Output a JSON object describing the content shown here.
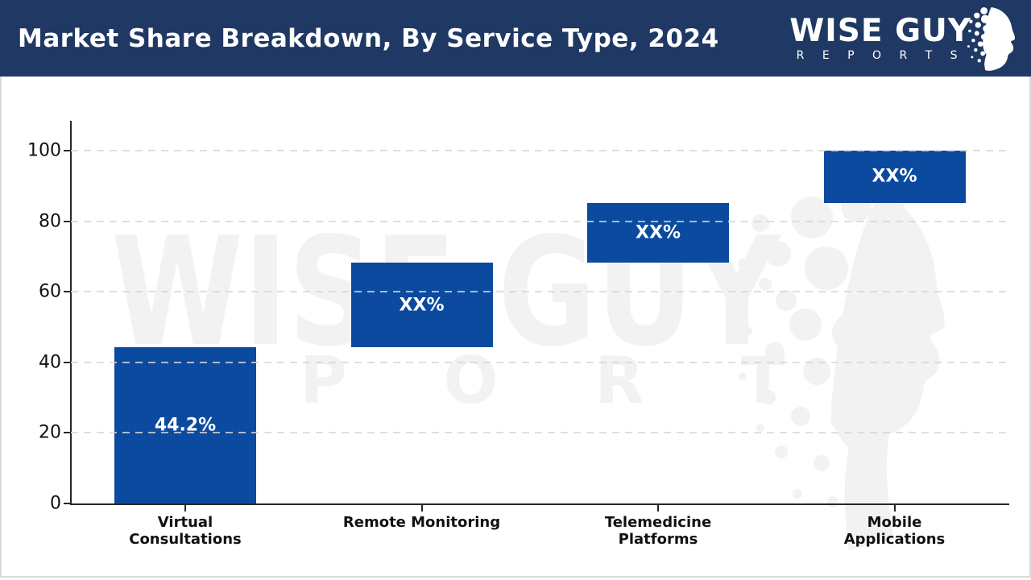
{
  "header": {
    "title": "Market Share Breakdown, By Service Type, 2024",
    "logo": {
      "name": "WISE GUY",
      "subname": "R E P O R T S"
    }
  },
  "watermark": {
    "big_text": "WISE GUY",
    "small_text": "P O R T S"
  },
  "colors": {
    "header_bg": "#1f3864",
    "bar": "#0b4a9f",
    "axis": "#262626",
    "grid": "#d7d7d7",
    "watermark": "#f2f2f3",
    "panel_border": "#d9d9d9",
    "bar_label_text": "#ffffff"
  },
  "chart_data": {
    "type": "bar",
    "variant": "waterfall",
    "title": "Market Share Breakdown, By Service Type, 2024",
    "xlabel": "",
    "ylabel": "",
    "ylim": [
      0,
      100
    ],
    "grid": "horizontal-dashed",
    "legend_position": "none",
    "yticks": [
      "0",
      "20",
      "40",
      "60",
      "80",
      "100"
    ],
    "ytick_values": [
      0,
      20,
      40,
      60,
      80,
      100
    ],
    "categories": [
      "Virtual Consultations",
      "Remote Monitoring",
      "Telemedicine Platforms",
      "Mobile Applications"
    ],
    "category_label_lines": [
      [
        "Virtual",
        "Consultations"
      ],
      [
        "Remote Monitoring"
      ],
      [
        "Telemedicine",
        "Platforms"
      ],
      [
        "Mobile",
        "Applications"
      ]
    ],
    "segments": [
      {
        "category": "Virtual Consultations",
        "start": 0,
        "end": 44.2,
        "label": "44.2%"
      },
      {
        "category": "Remote Monitoring",
        "start": 44.2,
        "end": 68.2,
        "label": "XX%"
      },
      {
        "category": "Telemedicine Platforms",
        "start": 68.2,
        "end": 85.2,
        "label": "XX%"
      },
      {
        "category": "Mobile Applications",
        "start": 85.2,
        "end": 100,
        "label": "XX%"
      }
    ]
  }
}
